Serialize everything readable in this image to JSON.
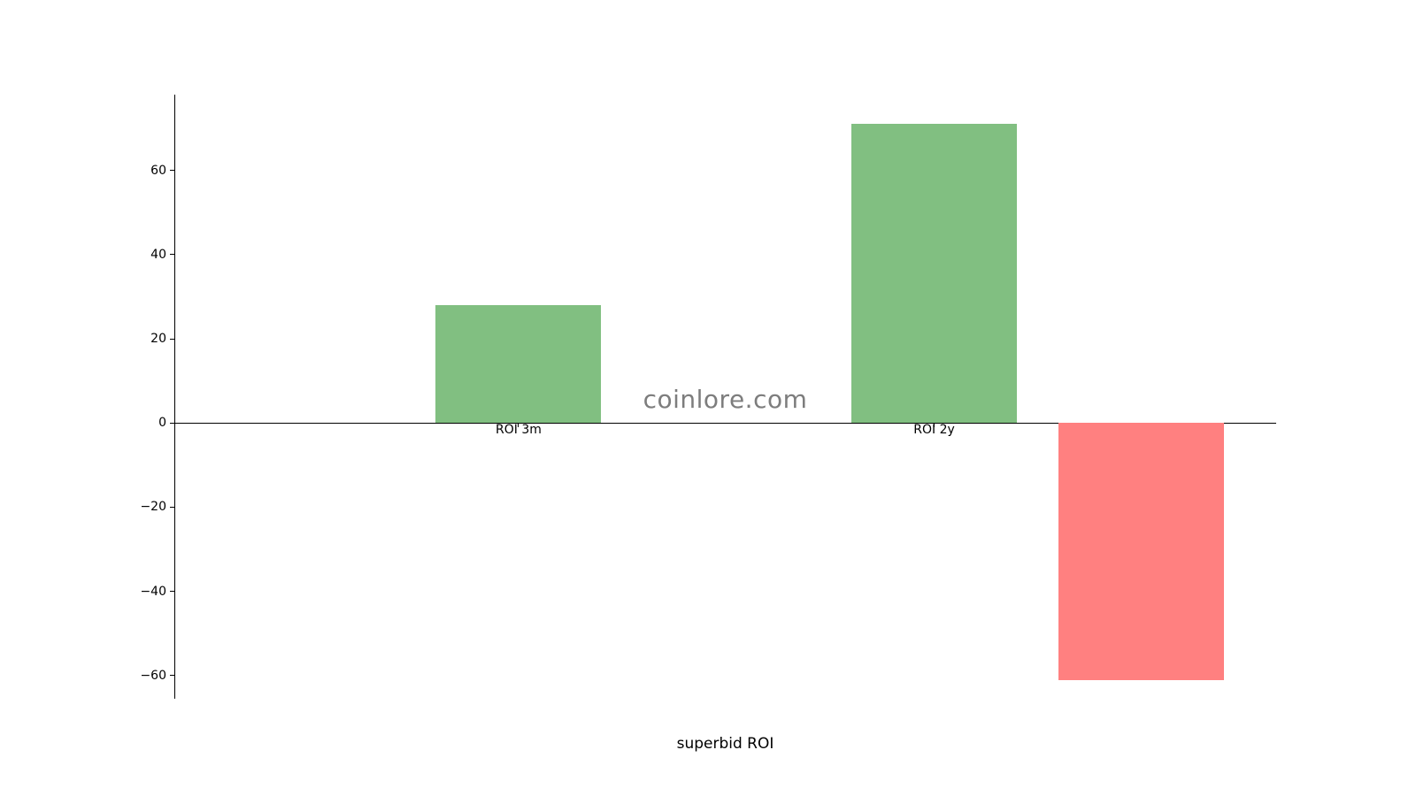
{
  "chart_data": {
    "type": "bar",
    "title": "",
    "xlabel": "superbid ROI",
    "ylabel": "",
    "watermark": "coinlore.com",
    "categories": [
      "ROI 3m",
      "ROI 2y",
      ""
    ],
    "values": [
      28,
      71,
      -61
    ],
    "series": [
      {
        "name": "superbid ROI",
        "values": [
          28,
          71,
          -61
        ]
      }
    ],
    "bars": [
      {
        "label": "ROI 3m",
        "value": 28,
        "color": "#81bf81",
        "center_frac": 0.3124,
        "show_tick": true
      },
      {
        "label": "ROI 2y",
        "value": 71,
        "color": "#81bf81",
        "center_frac": 0.6896,
        "show_tick": true
      },
      {
        "label": "",
        "value": -61,
        "color": "#ff8080",
        "center_frac": 0.8779,
        "show_tick": false
      }
    ],
    "bar_width_frac": 0.1502,
    "positive_color": "#81bf81",
    "negative_color": "#ff8080",
    "axis_color": "#000000",
    "watermark_color": "#7d7d7d",
    "ylim": [
      -65.5,
      78
    ],
    "yticks": [
      {
        "value": 60,
        "label": "60"
      },
      {
        "value": 40,
        "label": "40"
      },
      {
        "value": 20,
        "label": "20"
      },
      {
        "value": 0,
        "label": "0"
      },
      {
        "value": -20,
        "label": "−20"
      },
      {
        "value": -40,
        "label": "−40"
      },
      {
        "value": -60,
        "label": "−60"
      }
    ],
    "grid": false,
    "legend": null
  }
}
